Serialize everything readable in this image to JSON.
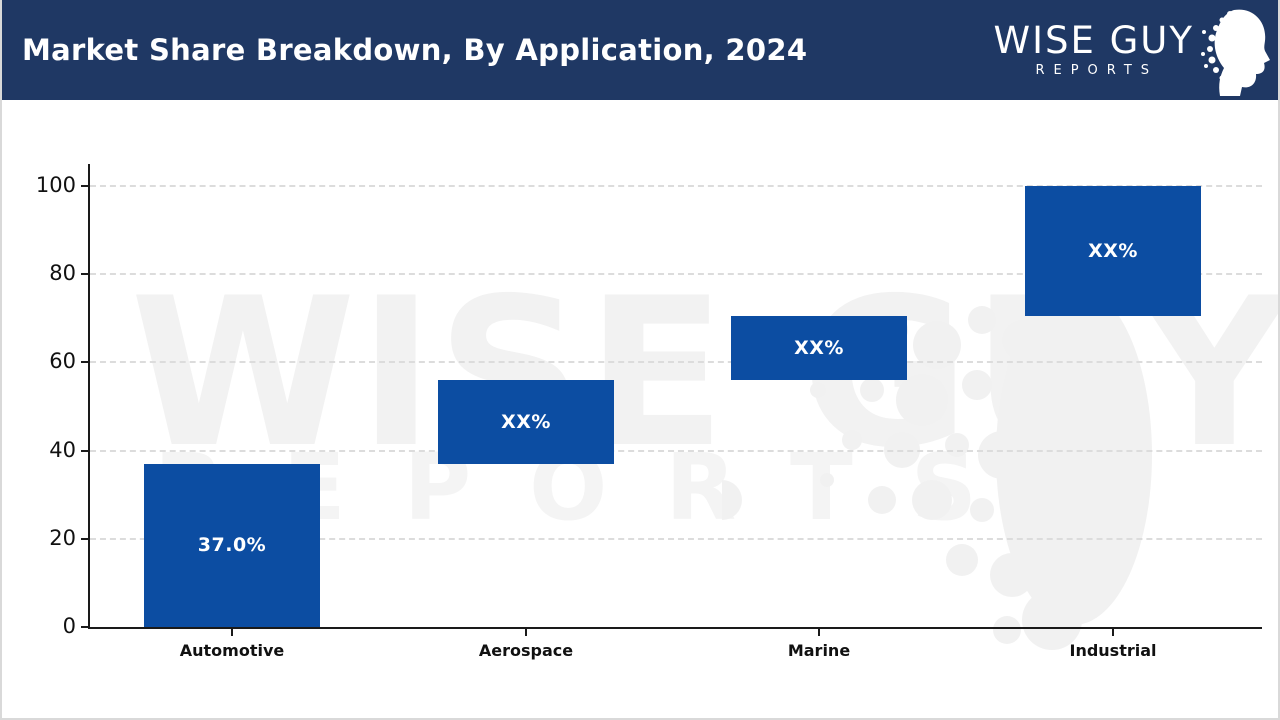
{
  "header": {
    "title": "Market Share Breakdown, By Application, 2024",
    "brand": {
      "name": "WISE GUY",
      "tagline": "REPORTS"
    }
  },
  "watermark": {
    "line1": "WISE GUY",
    "line2": "REPORTS"
  },
  "chart_data": {
    "type": "bar",
    "subtype": "floating-waterfall",
    "title": "Market Share Breakdown, By Application, 2024",
    "categories": [
      "Automotive",
      "Aerospace",
      "Marine",
      "Industrial"
    ],
    "bars": [
      {
        "category": "Automotive",
        "start": 0,
        "end": 37,
        "span": 37,
        "label": "37.0%"
      },
      {
        "category": "Aerospace",
        "start": 37,
        "end": 56,
        "span": 19,
        "label": "XX%"
      },
      {
        "category": "Marine",
        "start": 56,
        "end": 70.5,
        "span": 14.5,
        "label": "XX%"
      },
      {
        "category": "Industrial",
        "start": 70.5,
        "end": 100,
        "span": 29.5,
        "label": "XX%"
      }
    ],
    "yticks": [
      0,
      20,
      40,
      60,
      80,
      100
    ],
    "ytick_labels": [
      "0",
      "20",
      "40",
      "60",
      "80",
      "100"
    ],
    "ylim": [
      0,
      104
    ],
    "xlabel": "",
    "ylabel": "",
    "grid": "horizontal-dashed",
    "legend": "none",
    "bar_color": "#0c4da2",
    "bar_label_color": "#ffffff"
  },
  "colors": {
    "header_bg": "#1f3864",
    "header_text": "#ffffff",
    "axis": "#1a1a1a",
    "grid": "#dcdcdc",
    "watermark": "#f2f2f2",
    "page_border": "#d9d9d9"
  }
}
